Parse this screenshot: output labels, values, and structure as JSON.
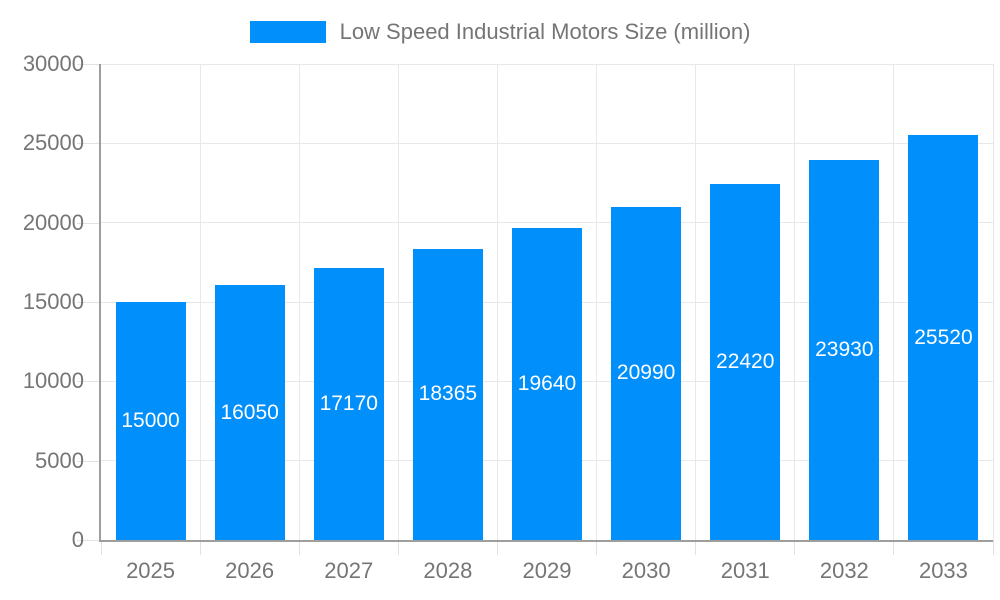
{
  "legend": {
    "label": "Low Speed Industrial Motors Size (million)"
  },
  "chart_data": {
    "type": "bar",
    "title": "Low Speed Industrial Motors Size (million)",
    "categories": [
      "2025",
      "2026",
      "2027",
      "2028",
      "2029",
      "2030",
      "2031",
      "2032",
      "2033"
    ],
    "values": [
      15000,
      16050,
      17170,
      18365,
      19640,
      20990,
      22420,
      23930,
      25520
    ],
    "xlabel": "",
    "ylabel": "",
    "ylim": [
      0,
      30000
    ],
    "yticks": [
      0,
      5000,
      10000,
      15000,
      20000,
      25000,
      30000
    ],
    "grid": true,
    "legend_position": "top",
    "data_labels": "inside-center",
    "colors": {
      "bar": "#008FFB",
      "gridline": "#e8e8e8",
      "axis_line": "#9e9e9e",
      "tick": "#e2e2e2",
      "axis_text": "#757575",
      "data_label_text": "#ffffff",
      "background": "#ffffff"
    }
  }
}
